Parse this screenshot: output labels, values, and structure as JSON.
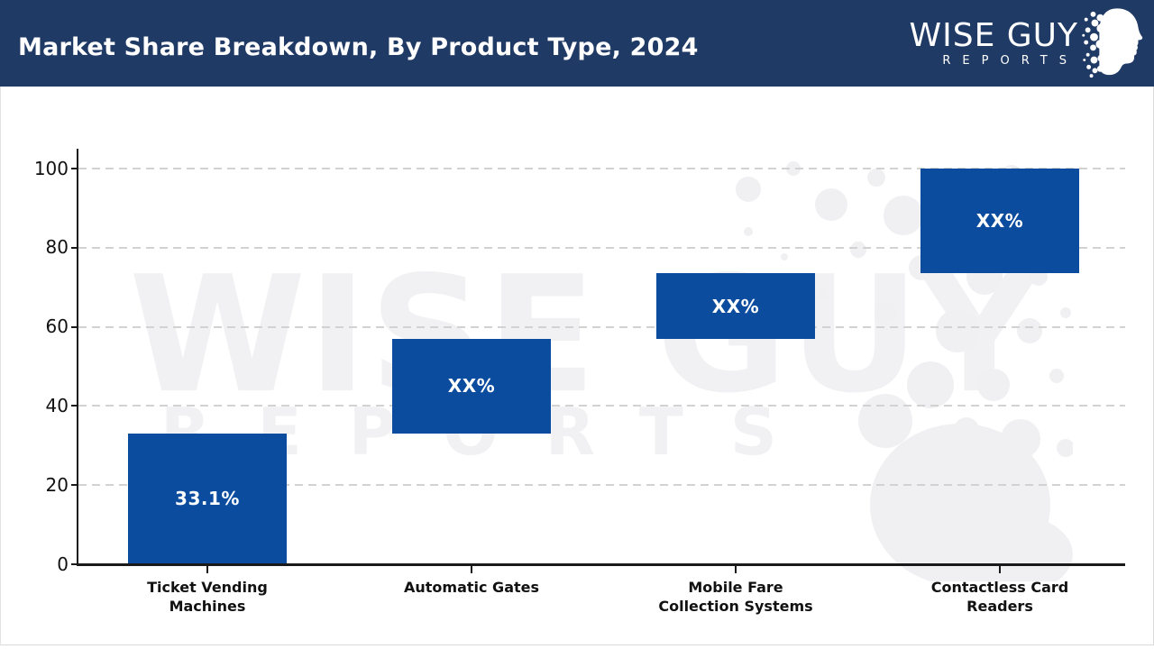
{
  "header": {
    "title": "Market Share Breakdown, By Product Type, 2024",
    "bg_color": "#203a66",
    "brand": {
      "line1": "WISE GUY",
      "line2": "REPORTS"
    }
  },
  "watermark": {
    "line1": "WISE GUY",
    "line2": "REPORTS",
    "color": "#f1f1f3"
  },
  "chart_data": {
    "type": "bar",
    "subtype": "waterfall",
    "title": "Market Share Breakdown, By Product Type, 2024",
    "categories": [
      "Ticket Vending Machines",
      "Automatic Gates",
      "Mobile Fare Collection Systems",
      "Contactless Card Readers"
    ],
    "segments": [
      {
        "label_lines": [
          "Ticket Vending",
          "Machines"
        ],
        "start": 0,
        "end": 33.1,
        "value_label": "33.1%"
      },
      {
        "label_lines": [
          "Automatic Gates"
        ],
        "start": 33.1,
        "end": 57,
        "value_label": "XX%"
      },
      {
        "label_lines": [
          "Mobile Fare",
          "Collection Systems"
        ],
        "start": 57,
        "end": 73.5,
        "value_label": "XX%"
      },
      {
        "label_lines": [
          "Contactless Card",
          "Readers"
        ],
        "start": 73.5,
        "end": 100,
        "value_label": "XX%"
      }
    ],
    "ylim": [
      0,
      100
    ],
    "yticks": [
      "0",
      "20",
      "40",
      "60",
      "80",
      "100"
    ],
    "xlabel": "",
    "ylabel": "",
    "grid": "horizontal dashed",
    "legend": "none",
    "bar_color": "#0c4c9f",
    "grid_color": "#d2d2d2",
    "axis_color": "#1a1a1a"
  }
}
